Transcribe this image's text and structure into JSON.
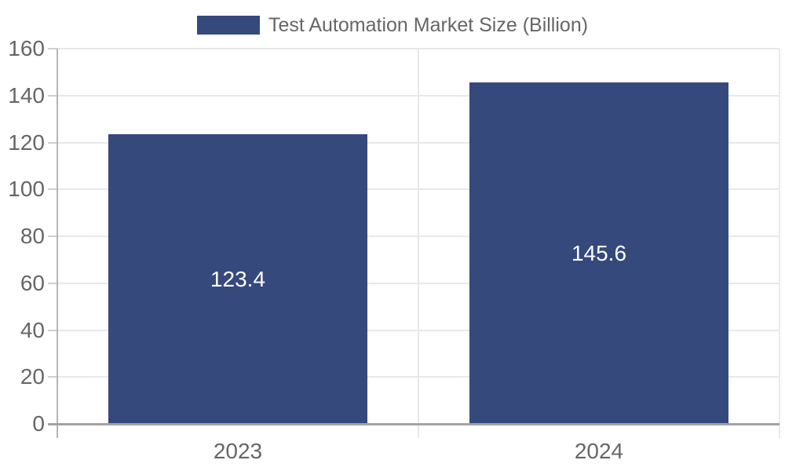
{
  "chart_data": {
    "type": "bar",
    "title": "",
    "legend": {
      "label": "Test Automation Market Size (Billion)",
      "position": "top-center"
    },
    "categories": [
      "2023",
      "2024"
    ],
    "series": [
      {
        "name": "Test Automation Market Size (Billion)",
        "values": [
          123.4,
          145.6
        ]
      }
    ],
    "value_labels": [
      "123.4",
      "145.6"
    ],
    "xlabel": "",
    "ylabel": "",
    "ylim": [
      0,
      160
    ],
    "yticks": [
      0,
      20,
      40,
      60,
      80,
      100,
      120,
      140,
      160
    ],
    "grid": {
      "horizontal": true,
      "vertical_category_boundaries": true,
      "legend_position": "top-center"
    },
    "colors": {
      "bar": "#35497D",
      "value_label_text": "#FFFFFF",
      "axis_label_text": "#666666",
      "legend_text": "#666666",
      "gridline": "#E8E8E8",
      "x_axis_line": "#A3A3A3",
      "y_axis_line": "#B5B5B5",
      "tick": "#CFCFCF",
      "background": "#FFFFFF"
    }
  }
}
